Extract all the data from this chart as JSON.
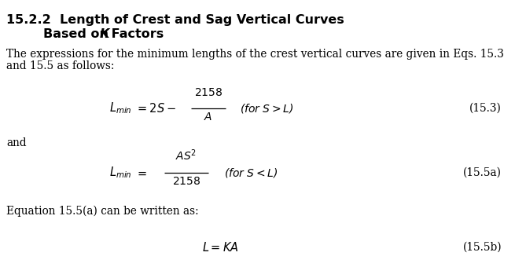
{
  "title_line1": "15.2.2  Length of Crest and Sag Vertical Curves",
  "title_line2_pre": "         Based on ",
  "title_K": "K",
  "title_line2_post": " Factors",
  "body_text_1": "The expressions for the minimum lengths of the crest vertical curves are given in Eqs. 15.3",
  "body_text_2": "and 15.5 as follows:",
  "and_text": "and",
  "eq15p5a_intro": "Equation 15.5(a) can be written as:",
  "eq1_label": "(15.3)",
  "eq2_label": "(15.5a)",
  "eq3_label": "(15.5b)",
  "bg_color": "#ffffff",
  "text_color": "#000000",
  "title_fs": 11.5,
  "body_fs": 9.8,
  "eq_fs": 10.5
}
